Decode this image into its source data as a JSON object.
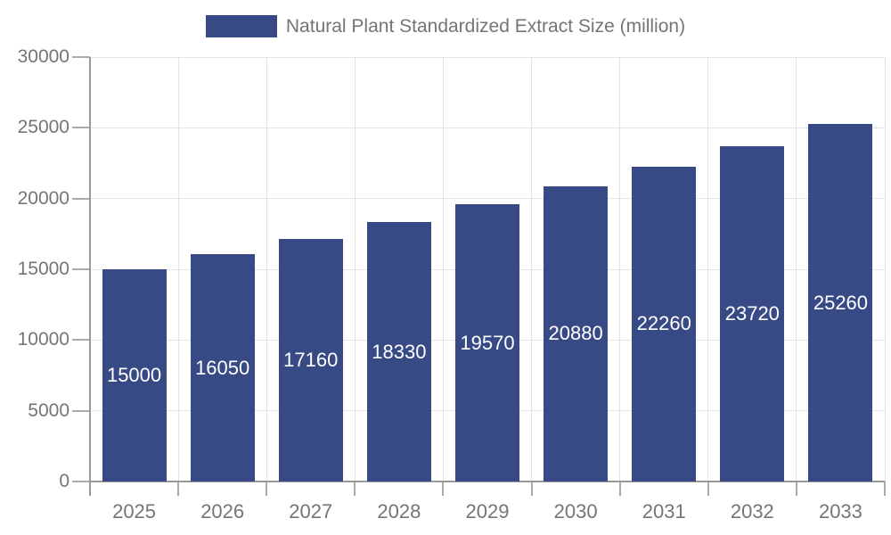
{
  "chart_data": {
    "type": "bar",
    "title": "Natural Plant Standardized Extract Size (million)",
    "legend": [
      "Natural Plant Standardized Extract Size (million)"
    ],
    "legend_position": "top",
    "categories": [
      "2025",
      "2026",
      "2027",
      "2028",
      "2029",
      "2030",
      "2031",
      "2032",
      "2033"
    ],
    "series": [
      {
        "name": "Natural Plant Standardized Extract Size (million)",
        "values": [
          15000,
          16050,
          17160,
          18330,
          19570,
          20880,
          22260,
          23720,
          25260
        ]
      }
    ],
    "bar_labels": [
      "15000",
      "16050",
      "17160",
      "18330",
      "19570",
      "20880",
      "22260",
      "23720",
      "25260"
    ],
    "xlabel": "",
    "ylabel": "",
    "ylim": [
      0,
      30000
    ],
    "yticks": [
      0,
      5000,
      10000,
      15000,
      20000,
      25000,
      30000
    ],
    "ytick_labels": [
      "0",
      "5000",
      "10000",
      "15000",
      "20000",
      "25000",
      "30000"
    ],
    "grid": true,
    "colors": {
      "bar": "#374A85",
      "bar_value_label": "#ffffff",
      "axis_label": "#757575",
      "legend_text": "#757575",
      "axis_line": "#999999",
      "tick_mark": "#aaaaaa",
      "gridline": "#e4e4e4",
      "background": "#ffffff"
    }
  }
}
